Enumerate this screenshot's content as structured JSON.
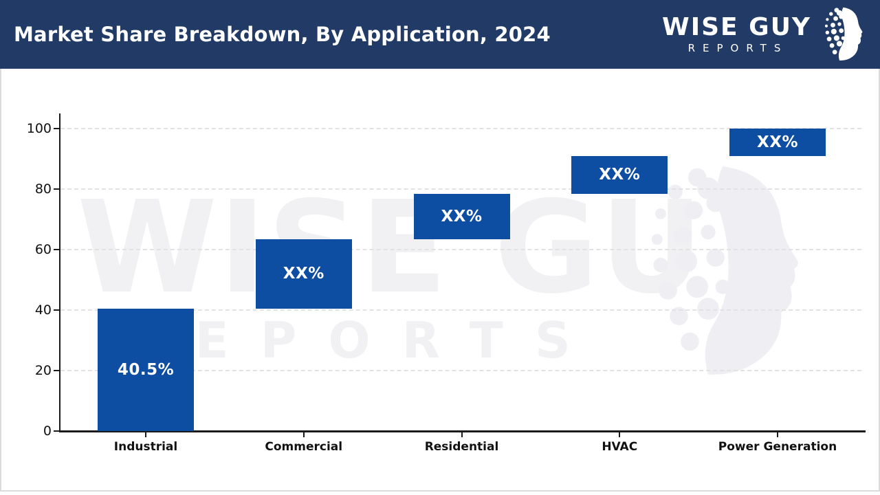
{
  "header": {
    "title": "Market Share Breakdown, By Application, 2024",
    "logo": {
      "line1": "WISE GUY",
      "line2": "REPORTS"
    }
  },
  "watermark": {
    "line1": "WISE GU",
    "line2": "REPORTS"
  },
  "colors": {
    "header_bg": "#213A66",
    "bar": "#0D4DA2",
    "bar_label": "#FFFFFF",
    "grid": "#E2E2E2",
    "axis": "#1A1A1A",
    "watermark": "#F1F1F4"
  },
  "chart_data": {
    "type": "bar",
    "subtype": "waterfall",
    "title": "Market Share Breakdown, By Application, 2024",
    "categories": [
      "Industrial",
      "Commercial",
      "Residential",
      "HVAC",
      "Power Generation"
    ],
    "segments": [
      {
        "category": "Industrial",
        "start": 0,
        "end": 40.5,
        "label": "40.5%"
      },
      {
        "category": "Commercial",
        "start": 40.5,
        "end": 63.5,
        "label": "XX%"
      },
      {
        "category": "Residential",
        "start": 63.5,
        "end": 78.5,
        "label": "XX%"
      },
      {
        "category": "HVAC",
        "start": 78.5,
        "end": 91,
        "label": "XX%"
      },
      {
        "category": "Power Generation",
        "start": 91,
        "end": 100,
        "label": "XX%"
      }
    ],
    "ylim": [
      0,
      100
    ],
    "yticks": [
      0,
      20,
      40,
      60,
      80,
      100
    ],
    "xlabel": "",
    "ylabel": "",
    "grid": "horizontal-dashed",
    "legend": "none",
    "bar_color": "#0D4DA2",
    "value_label_color": "#FFFFFF"
  }
}
